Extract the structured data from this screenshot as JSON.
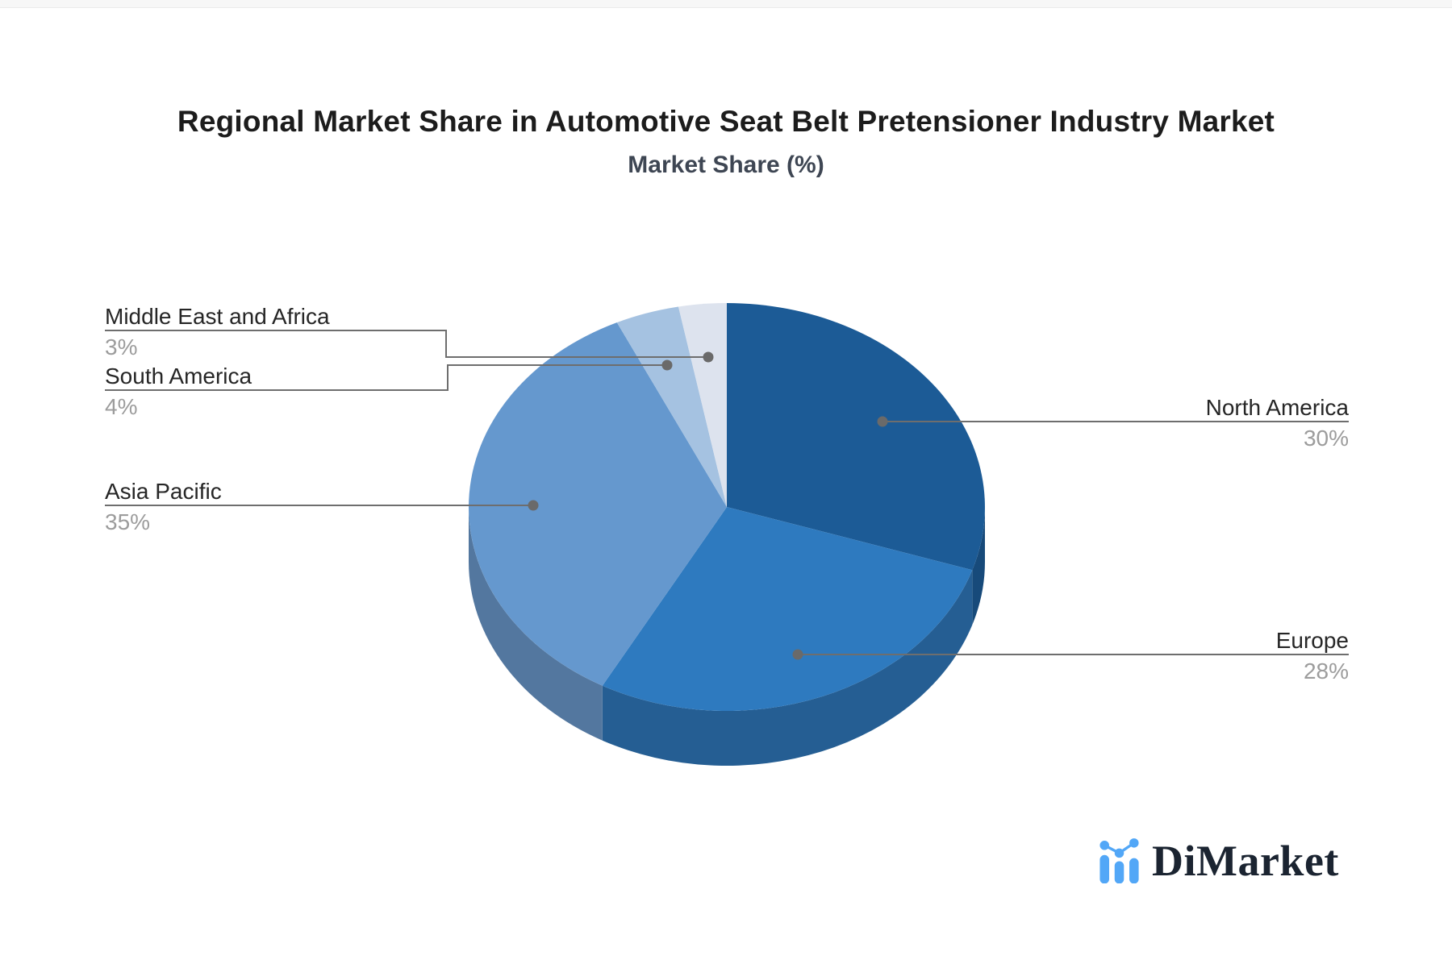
{
  "page": {
    "title": "Regional Market Share in Automotive Seat Belt Pretensioner Industry Market",
    "subtitle": "Market Share (%)"
  },
  "logo": {
    "text": "DiMarket",
    "icon": "bar-line-chart-icon",
    "icon_color": "#52a7f7",
    "text_color": "#1b2431"
  },
  "colors": {
    "background": "#ffffff",
    "top_strip": "#f7f7f7",
    "connector_line": "#6e6e6e",
    "connector_dot": "#6a6a6a",
    "region_label_text": "#262626",
    "percent_text": "#9c9c9c",
    "title_text": "#1c1c1c",
    "subtitle_text": "#3e4653"
  },
  "chart_data": {
    "type": "pie",
    "style": "3d",
    "title": "Regional Market Share in Automotive Seat Belt Pretensioner Industry Market",
    "subtitle": "Market Share (%)",
    "unit": "%",
    "start_angle_deg": 0,
    "direction": "clockwise",
    "legend_position": "none",
    "labels_shown_as": "callouts",
    "segments": [
      {
        "label": "North America",
        "value": 30,
        "display": "30%",
        "color": "#1c5b96",
        "side_color": "#174a7a",
        "callout_side": "right"
      },
      {
        "label": "Europe",
        "value": 28,
        "display": "28%",
        "color": "#2e7abf",
        "side_color": "#255e93",
        "callout_side": "right"
      },
      {
        "label": "Asia Pacific",
        "value": 35,
        "display": "35%",
        "color": "#6598ce",
        "side_color": "#53779f",
        "callout_side": "left"
      },
      {
        "label": "South America",
        "value": 4,
        "display": "4%",
        "color": "#a5c2e1",
        "side_color": "#86a9cc",
        "callout_side": "left"
      },
      {
        "label": "Middle East and Africa",
        "value": 3,
        "display": "3%",
        "color": "#dde3ee",
        "side_color": "#b9c4d6",
        "callout_side": "left"
      }
    ]
  }
}
